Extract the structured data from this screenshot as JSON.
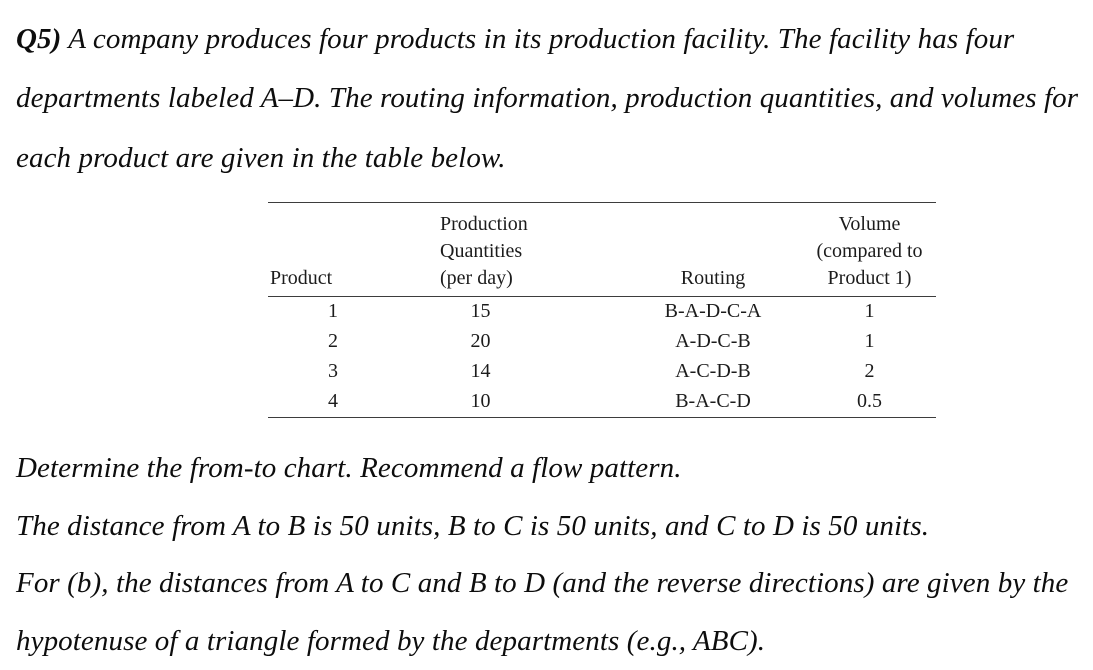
{
  "intro": {
    "label": "Q5)",
    "text": "A company produces four products in its production facility. The facility has four departments labeled A–D. The routing information, production quantities, and volumes for each product are given in the table below."
  },
  "table": {
    "headers": {
      "product": "Product",
      "quantities_lines": [
        "Production",
        "Quantities",
        "(per day)"
      ],
      "routing": "Routing",
      "volume_lines": [
        "Volume",
        "(compared to",
        "Product 1)"
      ]
    },
    "rows": [
      {
        "product": "1",
        "qty": "15",
        "routing": "B-A-D-C-A",
        "volume": "1"
      },
      {
        "product": "2",
        "qty": "20",
        "routing": "A-D-C-B",
        "volume": "1"
      },
      {
        "product": "3",
        "qty": "14",
        "routing": "A-C-D-B",
        "volume": "2"
      },
      {
        "product": "4",
        "qty": "10",
        "routing": "B-A-C-D",
        "volume": "0.5"
      }
    ]
  },
  "footer": [
    "Determine the from-to chart. Recommend a flow pattern.",
    "The distance from A to B is 50 units, B to C is 50 units, and C to D is 50 units.",
    "For (b), the distances from A to C and B to D (and the reverse directions) are given by the hypotenuse of a triangle formed by the departments (e.g., ABC)."
  ]
}
